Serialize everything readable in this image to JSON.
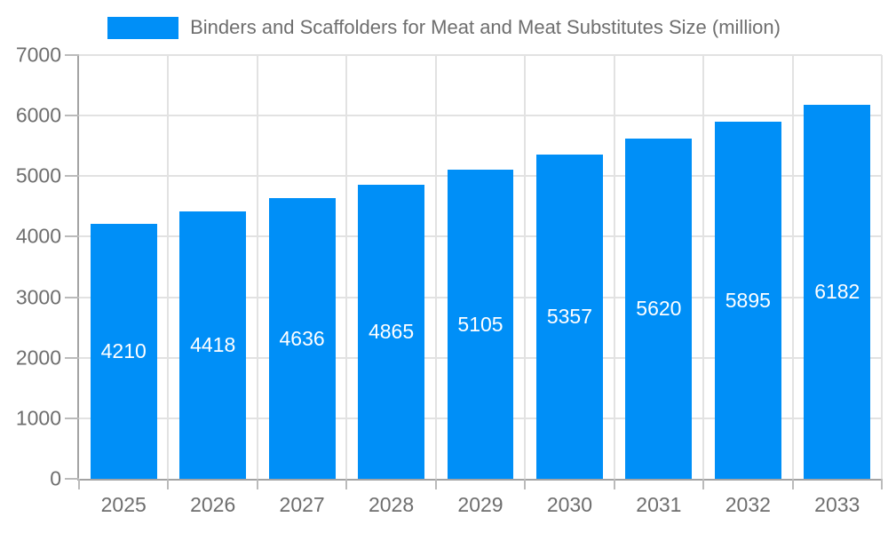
{
  "chart_data": {
    "type": "bar",
    "title": "Binders and Scaffolders for Meat and Meat Substitutes Size (million)",
    "categories": [
      "2025",
      "2026",
      "2027",
      "2028",
      "2029",
      "2030",
      "2031",
      "2032",
      "2033"
    ],
    "series": [
      {
        "name": "Binders and Scaffolders for Meat and Meat Substitutes Size (million)",
        "values": [
          4210,
          4418,
          4636,
          4865,
          5105,
          5357,
          5620,
          5895,
          6182
        ]
      }
    ],
    "data_labels_visible": true,
    "xlabel": "",
    "ylabel": "",
    "ylim": [
      0,
      7000
    ],
    "yticks": [
      0,
      1000,
      2000,
      3000,
      4000,
      5000,
      6000,
      7000
    ],
    "grid": true,
    "legend_position": "top",
    "colors": {
      "bar": "#008FF7",
      "bar_label": "#FFFFFF",
      "axis_text": "#6E6E6E",
      "legend_text": "#6E6E6E",
      "gridline": "#E2E2E2",
      "axis_line": "#A3A3A3",
      "tick": "#BBBBBB",
      "background": "#FFFFFF"
    }
  }
}
